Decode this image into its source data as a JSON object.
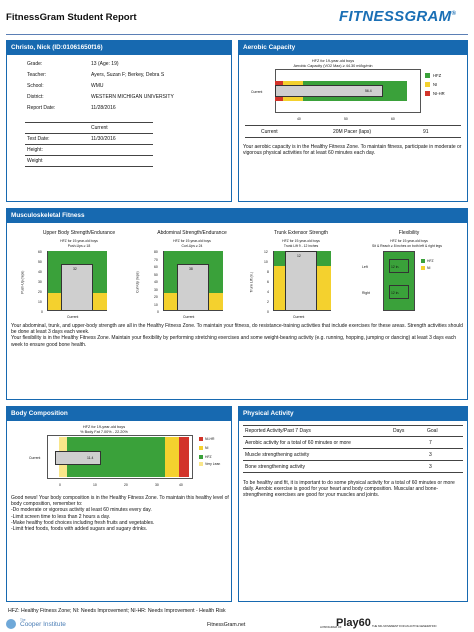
{
  "header": {
    "title": "FitnessGram Student Report",
    "brand": "FITNESSGRAM",
    "brand_mark": "®"
  },
  "student": {
    "panel_title": "Christo, Nick (ID:01061650f16)",
    "fields": [
      {
        "label": "Grade:",
        "value": "13  (Age: 19)"
      },
      {
        "label": "Teacher:",
        "value": "Ayers, Suzan F; Berkey, Debra S"
      },
      {
        "label": "School:",
        "value": "WMU"
      },
      {
        "label": "District:",
        "value": "WESTERN MICHIGAN UNIVERSITY"
      },
      {
        "label": "Report Date:",
        "value": "11/28/2016"
      }
    ],
    "table_header": "Current",
    "table_rows": [
      {
        "label": "Test Date:",
        "value": "11/30/2016"
      },
      {
        "label": "Height:",
        "value": ""
      },
      {
        "label": "Weight",
        "value": ""
      }
    ]
  },
  "aerobic": {
    "panel_title": "Aerobic Capacity",
    "chart_title_1": "HFZ for 19-year-old boys",
    "chart_title_2": "Aerobic Capacity (VO2 Max) ≥ 44.30 ml/kg/min",
    "row_label": "Current",
    "bar_value": "56.4",
    "axis_ticks": [
      "40",
      "50",
      "60"
    ],
    "legend": [
      "HFZ",
      "NI",
      "NI-HR"
    ],
    "table_header": [
      "Current",
      "20M Pacer (laps)",
      "91"
    ],
    "message": "Your aerobic capacity is in the Healthy Fitness Zone. To maintain fitness, participate in moderate or vigorous physical activities for at least 60 minutes each day."
  },
  "musculo": {
    "panel_title": "Musculoskeletal Fitness",
    "upper": {
      "title": "Upper Body Strength/Endurance",
      "sub1": "HFZ for 19-year-old boys",
      "sub2": "Push-Ups ≥ 18",
      "value": "32",
      "ylabel": "Push-Up (reps)",
      "ticks": [
        "60",
        "50",
        "40",
        "30",
        "20",
        "10",
        "0"
      ],
      "xlabel": "Current"
    },
    "abdominal": {
      "title": "Abdominal Strength/Endurance",
      "sub1": "HFZ for 19-year-old boys",
      "sub2": "Curl-Ups ≥ 24",
      "value": "38",
      "ylabel": "Curl-Up (reps)",
      "ticks": [
        "80",
        "70",
        "60",
        "50",
        "40",
        "30",
        "20",
        "10",
        "0"
      ],
      "xlabel": "Current"
    },
    "trunk": {
      "title": "Trunk Extensor Strength",
      "sub1": "HFZ for 19-year-old boys",
      "sub2": "Trunk Lift 9 - 12 inches",
      "value": "12",
      "ylabel": "Trunk Lift (in.)",
      "ticks": [
        "12",
        "10",
        "8",
        "6",
        "4",
        "2",
        "0"
      ],
      "xlabel": "Current"
    },
    "flex": {
      "title": "Flexibility",
      "sub1": "HFZ for 19-year-old boys",
      "sub2": "Sit & Reach ≥ 8 inches on both left & right legs",
      "left_label": "Left",
      "right_label": "Right",
      "left_value": "12 in.",
      "right_value": "12 in.",
      "legend": [
        "HFZ",
        "NI"
      ]
    },
    "message": "Your abdominal, trunk, and upper-body strength are all in the Healthy Fitness Zone. To maintain your fitness, do resistance-training activities that include exercises for these areas. Strength activities should be done at least 3 days each week.\nYour flexibility is in the Healthy Fitness Zone. Maintain your flexibility by performing stretching exercises and some weight-bearing activity (e.g. running, hopping, jumping or dancing) at least 3 days each week to ensure good bone health."
  },
  "body": {
    "panel_title": "Body Composition",
    "chart_title_1": "HFZ for 19-year-old boys",
    "chart_title_2": "% Body Fat 7.00% - 22.20%",
    "row_label": "Current",
    "bar_value": "11.4",
    "axis_ticks": [
      "0",
      "10",
      "20",
      "30",
      "40"
    ],
    "legend": [
      "NI-HR",
      "NI",
      "HFZ",
      "Very Lean"
    ],
    "message": "Good news! Your body composition is in the Healthy Fitness Zone. To maintain this healthy level of body composition, remember to:\n-Do moderate or vigorous activity at least 60 minutes every day.\n-Limit screen time to less than 2 hours a day.\n-Make healthy food choices including fresh fruits and vegetables.\n-Limit fried foods, foods with added sugars and sugary drinks."
  },
  "activity": {
    "panel_title": "Physical Activity",
    "head": [
      "Reported Activity/Past 7 Days",
      "Days",
      "Goal"
    ],
    "rows": [
      {
        "label": "Aerobic activity for a total of 60 minutes or more",
        "days": "",
        "goal": "7"
      },
      {
        "label": "Muscle strengthening activity",
        "days": "",
        "goal": "3"
      },
      {
        "label": "Bone strengthening activity",
        "days": "",
        "goal": "3"
      }
    ],
    "message": "To be healthy and fit, it is important to do some physical activity for a total of 60 minutes or more daily. Aerobic exercise is good for your heart and body composition. Muscular and bone-strengthening exercises are good for your muscles and joints."
  },
  "footer": {
    "legend": "HFZ: Healthy Fitness Zone; NI: Needs Improvement; NI-HR: Needs Improvement - Health Risk",
    "org_small": "The",
    "org": "Cooper Institute",
    "url": "FitnessGram.net",
    "sponsor_small": "A PROGRAM OF",
    "sponsor": "Play60",
    "sponsor_tag": "THE NFL MOVEMENT FOR AN ACTIVE GENERATION"
  },
  "colors": {
    "panel_blue": "#1769b0",
    "hfz_green": "#3aa13a",
    "ni_yellow": "#f4d12e",
    "nihr_red": "#d2342a",
    "very_lean": "#f9e68a",
    "bar_gray": "#cfcfcf"
  }
}
